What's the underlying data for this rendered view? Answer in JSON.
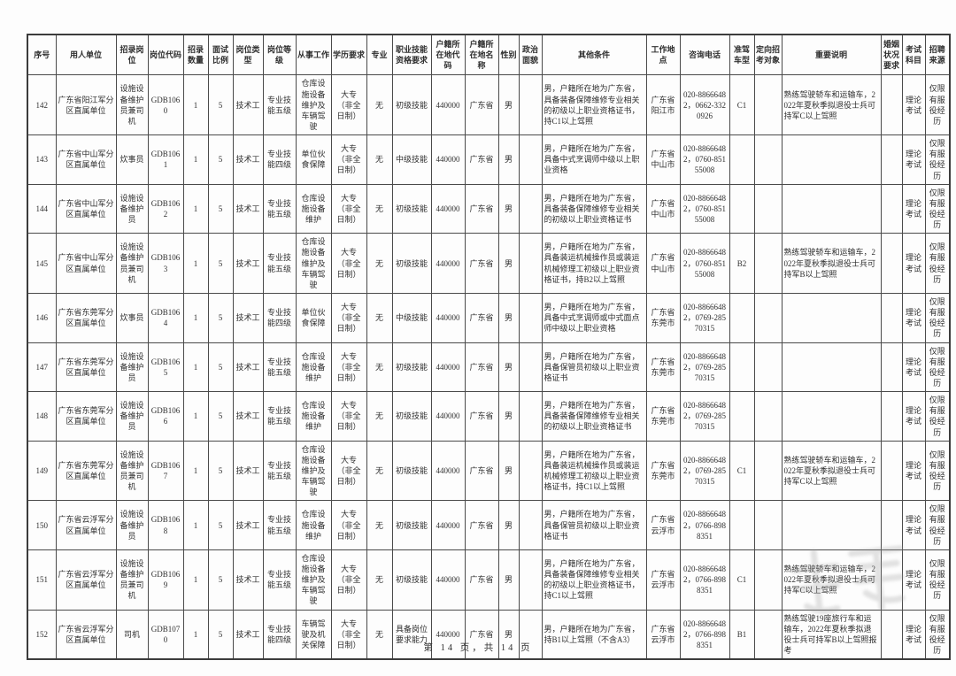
{
  "page": {
    "footer": "第 14 页，共 14 页"
  },
  "table": {
    "headers": [
      "序号",
      "用人单位",
      "招录岗位",
      "岗位代码",
      "招录数量",
      "面试比例",
      "岗位类型",
      "岗位等级",
      "从事工作",
      "学历要求",
      "专业",
      "职业技能资格要求",
      "户籍所在地代码",
      "户籍所在地名称",
      "性别",
      "政治面貌",
      "其他条件",
      "工作地点",
      "咨询电话",
      "准驾车型",
      "定向招考对象",
      "重要说明",
      "婚姻状况要求",
      "考试科目",
      "招聘来源"
    ],
    "rows": [
      [
        "142",
        "广东省阳江军分区直属单位",
        "设施设备维护员兼司机",
        "GDB1060",
        "1",
        "5",
        "技术工",
        "专业技能五级",
        "仓库设施设备维护及车辆驾驶",
        "大专（非全日制）",
        "无",
        "初级技能",
        "440000",
        "广东省",
        "男",
        "",
        "男，户籍所在地为广东省，具备装备保障维修专业相关的初级以上职业资格证书，持C1以上驾照",
        "广东省阳江市",
        "020-88666482，0662-3320926",
        "C1",
        "",
        "熟练驾驶轿车和运输车，2022年夏秋季拟退役士兵可持军C以上驾照",
        "",
        "理论考试",
        "仅限有服役经历"
      ],
      [
        "143",
        "广东省中山军分区直属单位",
        "炊事员",
        "GDB1061",
        "1",
        "5",
        "技术工",
        "专业技能四级",
        "单位伙食保障",
        "大专（非全日制）",
        "无",
        "中级技能",
        "440000",
        "广东省",
        "男",
        "",
        "男，户籍所在地为广东省，具备中式烹调师中级以上职业资格",
        "广东省中山市",
        "020-88666482，0760-85155008",
        "",
        "",
        "",
        "",
        "理论考试",
        "仅限有服役经历"
      ],
      [
        "144",
        "广东省中山军分区直属单位",
        "设施设备维护员",
        "GDB1062",
        "1",
        "5",
        "技术工",
        "专业技能五级",
        "仓库设施设备维护",
        "大专（非全日制）",
        "无",
        "初级技能",
        "440000",
        "广东省",
        "男",
        "",
        "男，户籍所在地为广东省，具备装备保障维修专业相关的初级以上职业资格证书",
        "广东省中山市",
        "020-88666482，0760-85155008",
        "",
        "",
        "",
        "",
        "理论考试",
        "仅限有服役经历"
      ],
      [
        "145",
        "广东省中山军分区直属单位",
        "设施设备维护员兼司机",
        "GDB1063",
        "1",
        "5",
        "技术工",
        "专业技能五级",
        "仓库设施设备维护及车辆驾驶",
        "大专（非全日制）",
        "无",
        "初级技能",
        "440000",
        "广东省",
        "男",
        "",
        "男，户籍所在地为广东省，具备装运机械操作员或装运机械修理工初级以上职业资格证书，持B2以上驾照",
        "广东省中山市",
        "020-88666482，0760-85155008",
        "B2",
        "",
        "熟练驾驶轿车和运输车，2022年夏秋季拟退役士兵可持军B以上驾照",
        "",
        "理论考试",
        "仅限有服役经历"
      ],
      [
        "146",
        "广东省东莞军分区直属单位",
        "炊事员",
        "GDB1064",
        "1",
        "5",
        "技术工",
        "专业技能四级",
        "单位伙食保障",
        "大专（非全日制）",
        "无",
        "中级技能",
        "440000",
        "广东省",
        "男",
        "",
        "男，户籍所在地为广东省，具备中式烹调师或中式面点师中级以上职业资格",
        "广东省东莞市",
        "020-88666482，0769-28570315",
        "",
        "",
        "",
        "",
        "理论考试",
        "仅限有服役经历"
      ],
      [
        "147",
        "广东省东莞军分区直属单位",
        "设施设备维护员",
        "GDB1065",
        "1",
        "5",
        "技术工",
        "专业技能五级",
        "仓库设施设备维护",
        "大专（非全日制）",
        "无",
        "初级技能",
        "440000",
        "广东省",
        "男",
        "",
        "男，户籍所在地为广东省，具备保管员初级以上职业资格证书",
        "广东省东莞市",
        "020-88666482，0769-28570315",
        "",
        "",
        "",
        "",
        "理论考试",
        "仅限有服役经历"
      ],
      [
        "148",
        "广东省东莞军分区直属单位",
        "设施设备维护员",
        "GDB1066",
        "1",
        "5",
        "技术工",
        "专业技能五级",
        "仓库设施设备维护",
        "大专（非全日制）",
        "无",
        "初级技能",
        "440000",
        "广东省",
        "男",
        "",
        "男，户籍所在地为广东省，具备装备保障维修专业相关的初级以上职业资格证书",
        "广东省东莞市",
        "020-88666482，0769-28570315",
        "",
        "",
        "",
        "",
        "理论考试",
        "仅限有服役经历"
      ],
      [
        "149",
        "广东省东莞军分区直属单位",
        "设施设备维护员兼司机",
        "GDB1067",
        "1",
        "5",
        "技术工",
        "专业技能五级",
        "仓库设施设备维护及车辆驾驶",
        "大专（非全日制）",
        "无",
        "初级技能",
        "440000",
        "广东省",
        "男",
        "",
        "男，户籍所在地为广东省，具备装运机械操作员或装运机械修理工初级以上职业资格证书，持C1以上驾照",
        "广东省东莞市",
        "020-88666482，0769-28570315",
        "C1",
        "",
        "熟练驾驶轿车和运输车，2022年夏秋季拟退役士兵可持军C以上驾照",
        "",
        "理论考试",
        "仅限有服役经历"
      ],
      [
        "150",
        "广东省云浮军分区直属单位",
        "设施设备维护员",
        "GDB1068",
        "1",
        "5",
        "技术工",
        "专业技能五级",
        "仓库设施设备维护",
        "大专（非全日制）",
        "无",
        "初级技能",
        "440000",
        "广东省",
        "男",
        "",
        "男，户籍所在地为广东省，具备保管员初级以上职业资格证书",
        "广东省云浮市",
        "020-88666482，0766-8988351",
        "",
        "",
        "",
        "",
        "理论考试",
        "仅限有服役经历"
      ],
      [
        "151",
        "广东省云浮军分区直属单位",
        "设施设备维护员兼司机",
        "GDB1069",
        "1",
        "5",
        "技术工",
        "专业技能五级",
        "仓库设施设备维护及车辆驾驶",
        "大专（非全日制）",
        "无",
        "初级技能",
        "440000",
        "广东省",
        "男",
        "",
        "男，户籍所在地为广东省，具备装备保障维修专业相关的初级以上职业资格证书，持C1以上驾照",
        "广东省云浮市",
        "020-88666482，0766-8988351",
        "C1",
        "",
        "熟练驾驶轿车和运输车，2022年夏秋季拟退役士兵可持军C以上驾照",
        "",
        "理论考试",
        "仅限有服役经历"
      ],
      [
        "152",
        "广东省云浮军分区直属单位",
        "司机",
        "GDB1070",
        "1",
        "5",
        "技术工",
        "专业技能四级",
        "车辆驾驶及机关保障",
        "大专（非全日制）",
        "无",
        "具备岗位要求能力",
        "440000",
        "广东省",
        "男",
        "",
        "男，户籍所在地为广东省，持B1以上驾照（不含A3）",
        "广东省云浮市",
        "020-88666482，0766-8988351",
        "B1",
        "",
        "熟练驾驶19座旅行车和运输车，2022年夏秋季拟退役士兵可持军B以上驾照报考",
        "",
        "理论考试",
        "仅限有服役经历"
      ]
    ]
  }
}
